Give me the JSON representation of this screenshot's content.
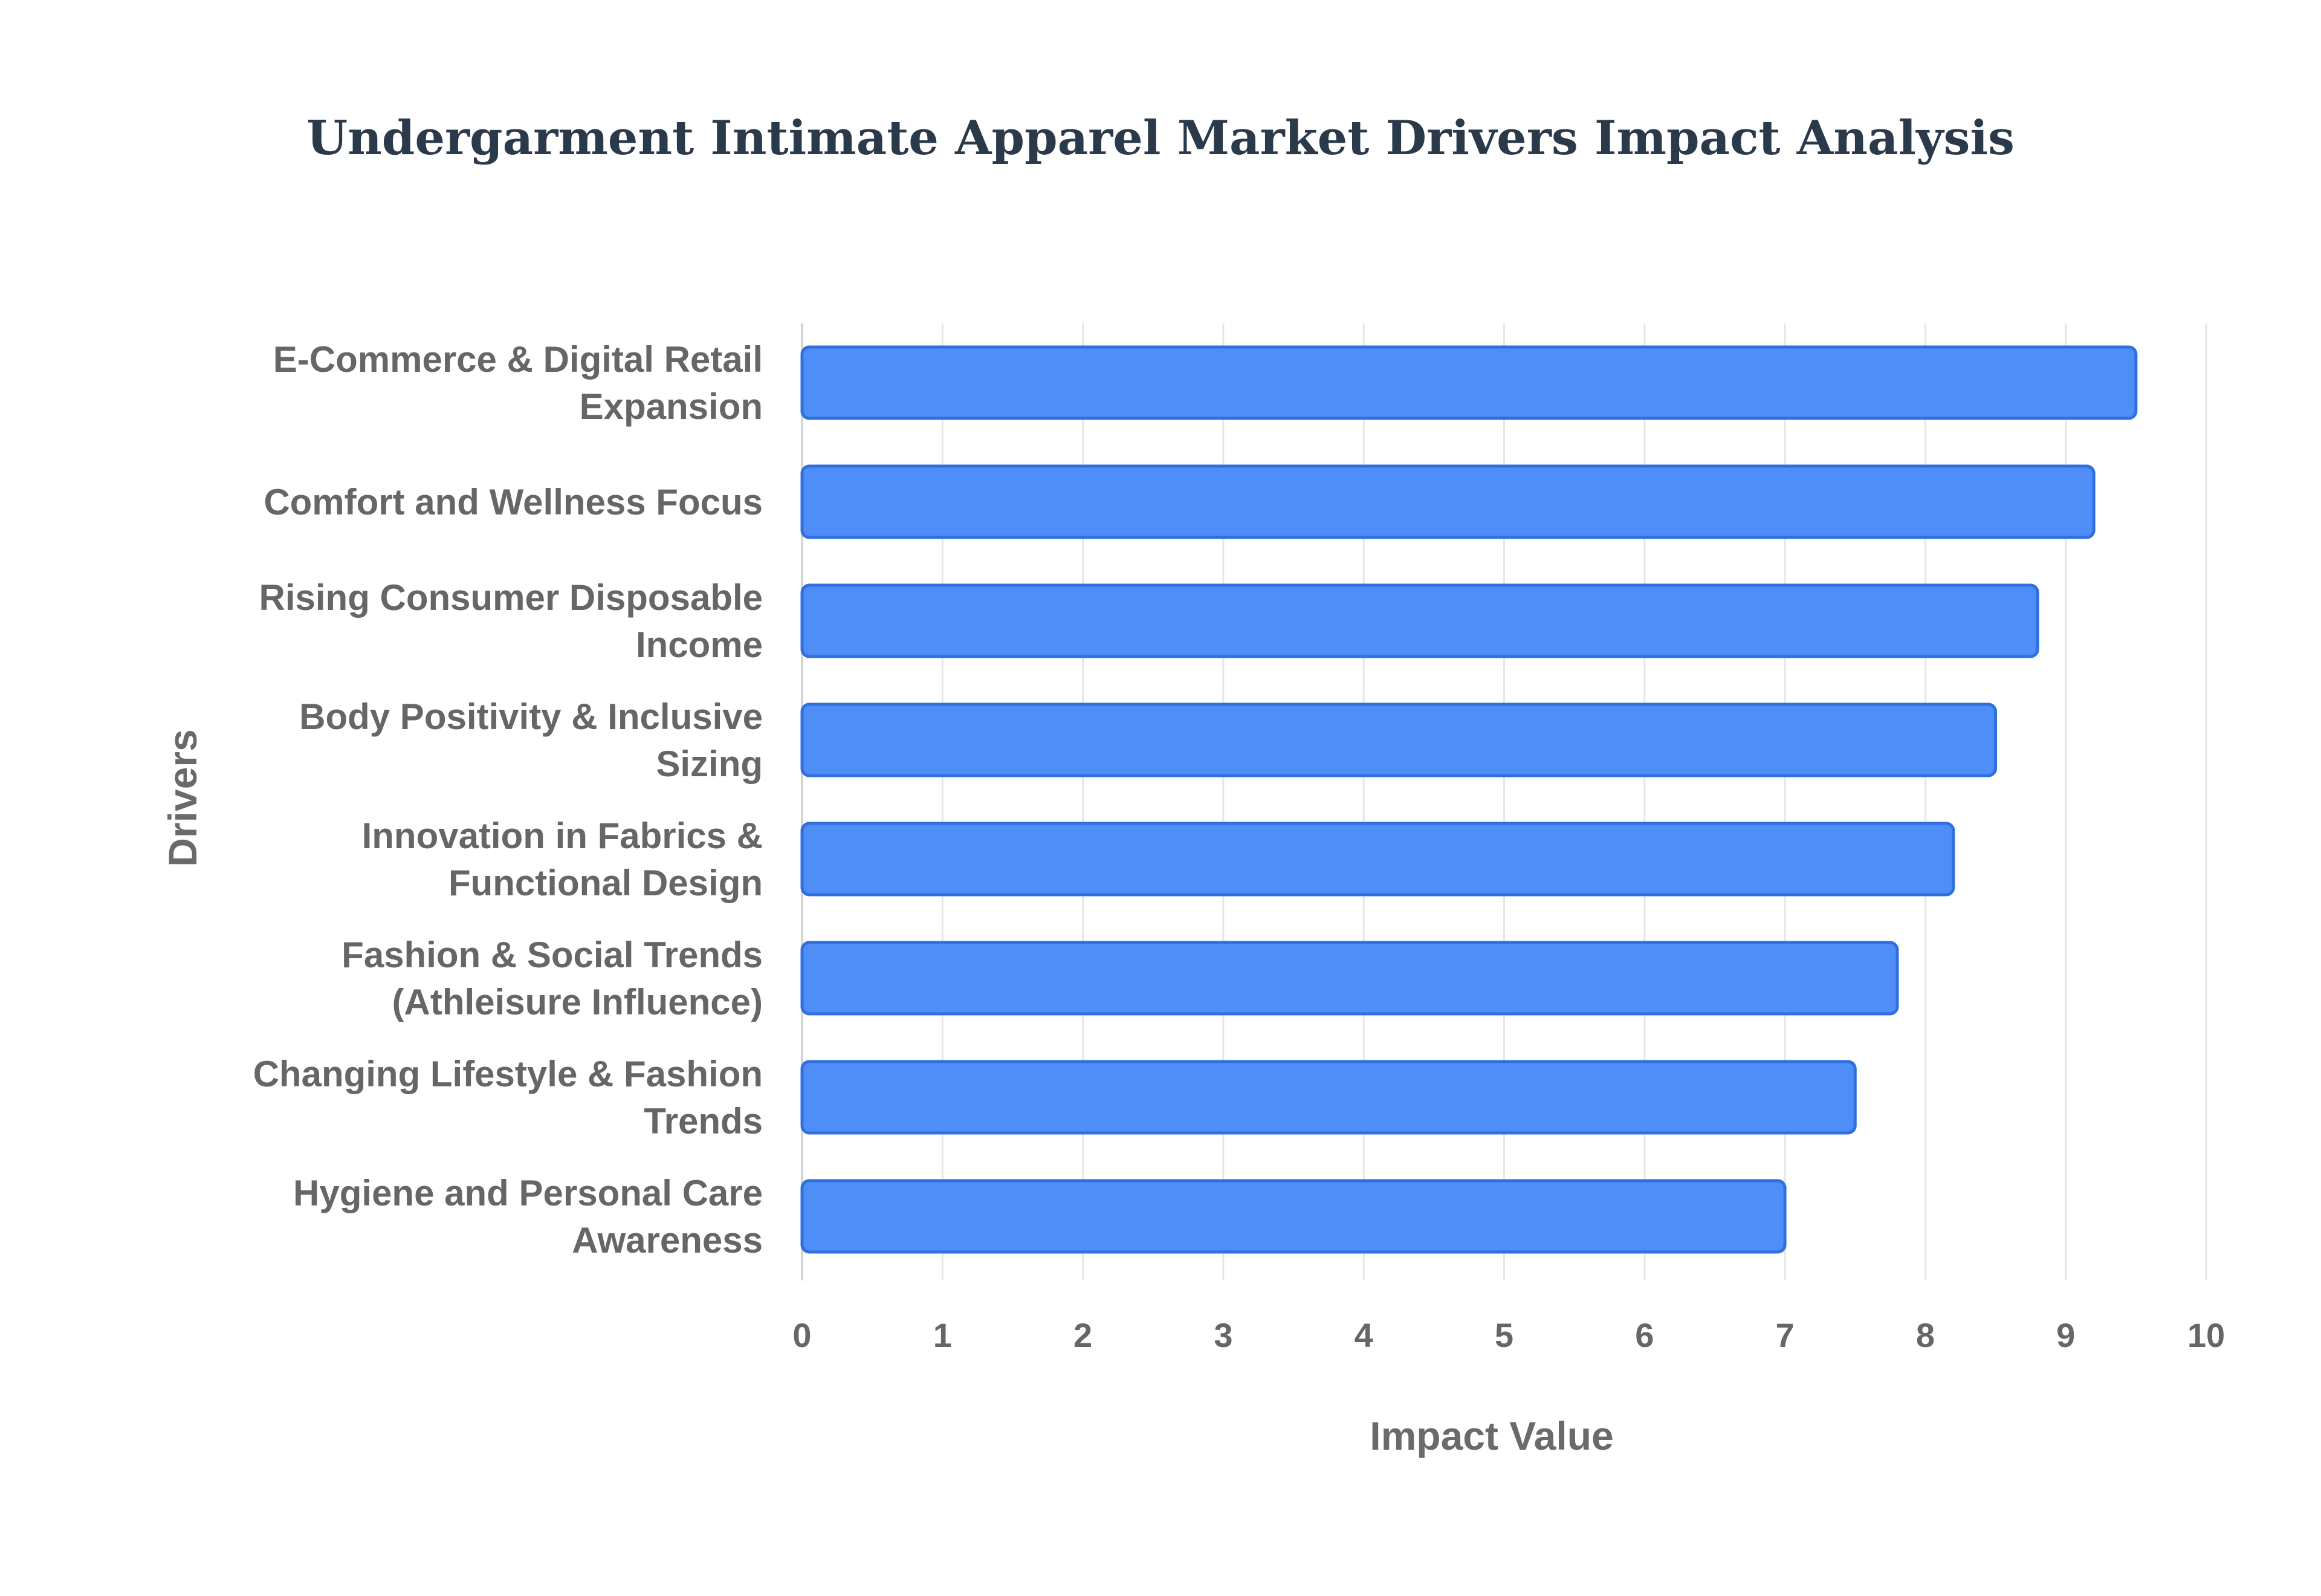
{
  "chart_data": {
    "type": "bar",
    "orientation": "horizontal",
    "title": "Undergarment Intimate Apparel Market Drivers Impact Analysis",
    "xlabel": "Impact Value",
    "ylabel": "Drivers",
    "xlim": [
      0,
      10
    ],
    "xticks": [
      "0",
      "1",
      "2",
      "3",
      "4",
      "5",
      "6",
      "7",
      "8",
      "9",
      "10"
    ],
    "grid": true,
    "categories": [
      [
        "E-Commerce & Digital Retail",
        "Expansion"
      ],
      [
        "Comfort and Wellness Focus"
      ],
      [
        "Rising Consumer Disposable",
        "Income"
      ],
      [
        "Body Positivity & Inclusive",
        "Sizing"
      ],
      [
        "Innovation in Fabrics &",
        "Functional Design"
      ],
      [
        "Fashion & Social Trends",
        "(Athleisure Influence)"
      ],
      [
        "Changing Lifestyle & Fashion",
        "Trends"
      ],
      [
        "Hygiene and Personal Care",
        "Awareness"
      ]
    ],
    "values": [
      9.5,
      9.2,
      8.8,
      8.5,
      8.2,
      7.8,
      7.5,
      7.0
    ],
    "colors": {
      "bar_fill": "#4f8ef7",
      "bar_stroke": "#2f6fe0",
      "title": "#2b3a4a",
      "text": "#666666"
    }
  }
}
